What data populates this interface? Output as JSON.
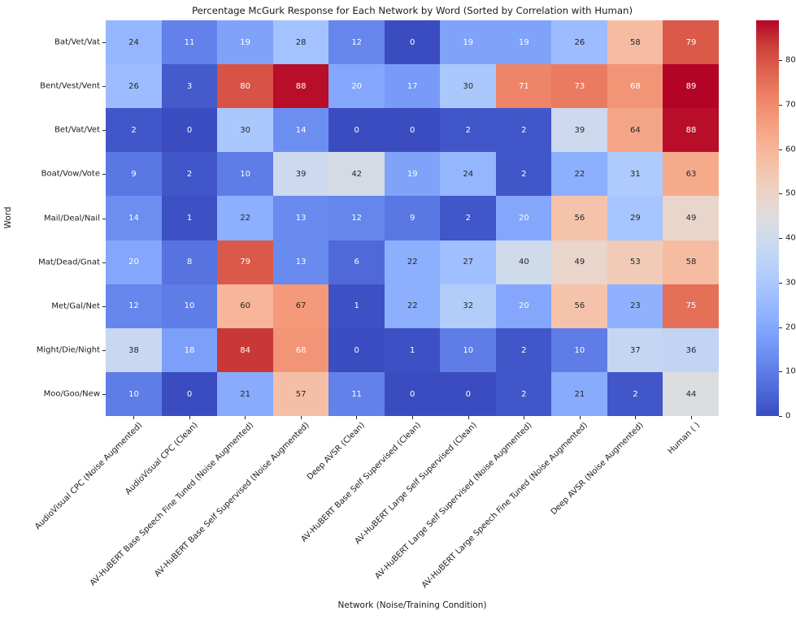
{
  "chart_data": {
    "type": "heatmap",
    "title": "Percentage McGurk Response for Each Network by Word (Sorted by Correlation with Human)",
    "xlabel": "Network (Noise/Training Condition)",
    "ylabel": "Word",
    "columns": [
      "AudioVisual CPC (Noise Augmented)",
      "AudioVisual CPC (Clean)",
      "AV-HuBERT Base Speech Fine Tuned (Noise Augmented)",
      "AV-HuBERT Base Self Supervised (Noise Augmented)",
      "Deep AVSR (Clean)",
      "AV-HuBERT Base Self Supervised (Clean)",
      "AV-HuBERT Large Self Supervised (Clean)",
      "AV-HuBERT Large Self Supervised (Noise Augmented)",
      "AV-HuBERT Large Speech Fine Tuned (Noise Augmented)",
      "Deep AVSR (Noise Augmented)",
      "Human ( )"
    ],
    "rows": [
      "Bat/Vet/Vat",
      "Bent/Vest/Vent",
      "Bet/Vat/Vet",
      "Boat/Vow/Vote",
      "Mail/Deal/Nail",
      "Mat/Dead/Gnat",
      "Met/Gal/Net",
      "Might/Die/Night",
      "Moo/Goo/New"
    ],
    "values": [
      [
        24,
        11,
        19,
        28,
        12,
        0,
        19,
        19,
        26,
        58,
        79
      ],
      [
        26,
        3,
        80,
        88,
        20,
        17,
        30,
        71,
        73,
        68,
        89
      ],
      [
        2,
        0,
        30,
        14,
        0,
        0,
        2,
        2,
        39,
        64,
        88
      ],
      [
        9,
        2,
        10,
        39,
        42,
        19,
        24,
        2,
        22,
        31,
        63
      ],
      [
        14,
        1,
        22,
        13,
        12,
        9,
        2,
        20,
        56,
        29,
        49
      ],
      [
        20,
        8,
        79,
        13,
        6,
        22,
        27,
        40,
        49,
        53,
        58
      ],
      [
        12,
        10,
        60,
        67,
        1,
        22,
        32,
        20,
        56,
        23,
        75
      ],
      [
        38,
        18,
        84,
        68,
        0,
        1,
        10,
        2,
        10,
        37,
        36
      ],
      [
        10,
        0,
        21,
        57,
        11,
        0,
        0,
        2,
        21,
        2,
        44
      ]
    ],
    "vmin": 0,
    "vmax": 89,
    "colormap": "coolwarm",
    "colorbar_ticks": [
      0,
      10,
      20,
      30,
      40,
      50,
      60,
      70,
      80
    ],
    "annotations_shown": true,
    "legend_position": "right-colorbar",
    "grid": false,
    "colors": {
      "colormap_low": "#3b4cc0",
      "colormap_mid": "#dddddd",
      "colormap_high": "#b40426",
      "annotation_dark": "#262626",
      "annotation_light": "#ffffff",
      "background": "#ffffff"
    }
  }
}
